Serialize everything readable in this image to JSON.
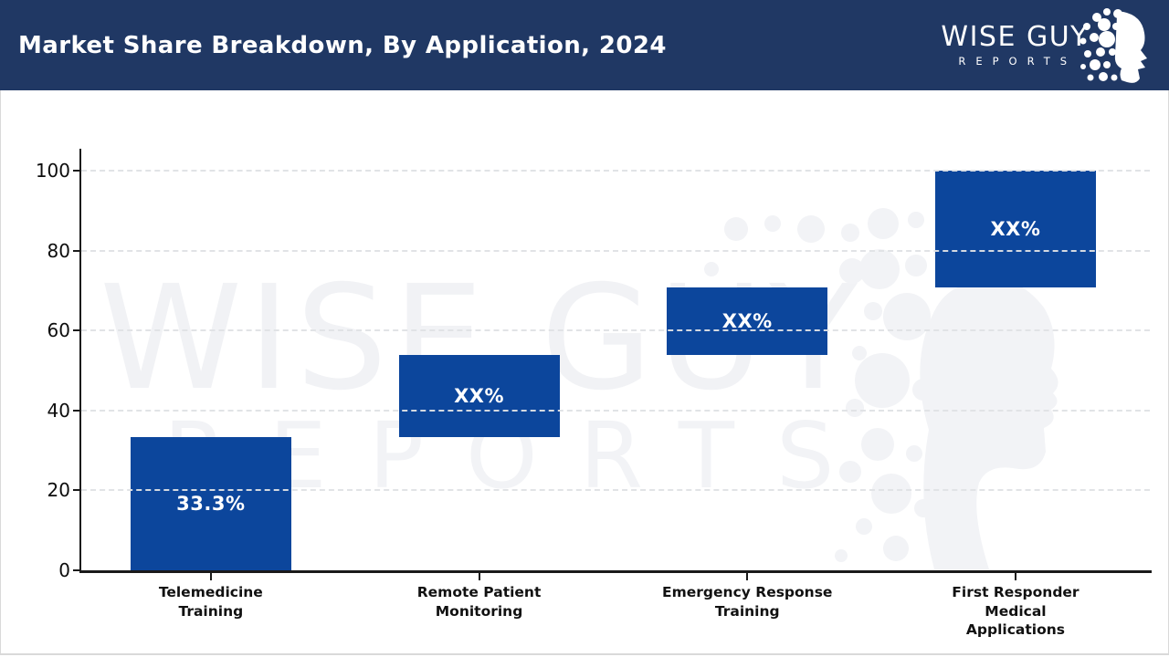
{
  "header": {
    "title": "Market Share Breakdown, By Application, 2024"
  },
  "logo": {
    "name": "WISE GUY",
    "sub": "REPORTS"
  },
  "watermark": {
    "line1": "WISE GUY",
    "line2": "REPORTS"
  },
  "colors": {
    "header_bg": "#203864",
    "bar": "#0c469c",
    "grid": "#e0e2e6",
    "axis": "#1a1a1a",
    "title_text": "#ffffff",
    "bar_label_text": "#ffffff",
    "watermark": "#f1f2f5"
  },
  "chart_data": {
    "type": "bar",
    "subtype": "floating-waterfall",
    "title": "Market Share Breakdown, By Application, 2024",
    "categories": [
      [
        "Telemedicine",
        "Training"
      ],
      [
        "Remote Patient",
        "Monitoring"
      ],
      [
        "Emergency Response",
        "Training"
      ],
      [
        "First Responder",
        "Medical",
        "Applications"
      ]
    ],
    "bars": [
      {
        "label": "33.3%",
        "start": 0,
        "end": 33.3
      },
      {
        "label": "XX%",
        "start": 33.3,
        "end": 53.9
      },
      {
        "label": "XX%",
        "start": 53.9,
        "end": 70.8
      },
      {
        "label": "XX%",
        "start": 70.8,
        "end": 100
      }
    ],
    "ylim": [
      0,
      100
    ],
    "yticks": [
      0,
      20,
      40,
      60,
      80,
      100
    ],
    "xlabel": "",
    "ylabel": "",
    "grid": "dashed-horizontal",
    "legend": "none",
    "bar_color": "#0c469c"
  }
}
